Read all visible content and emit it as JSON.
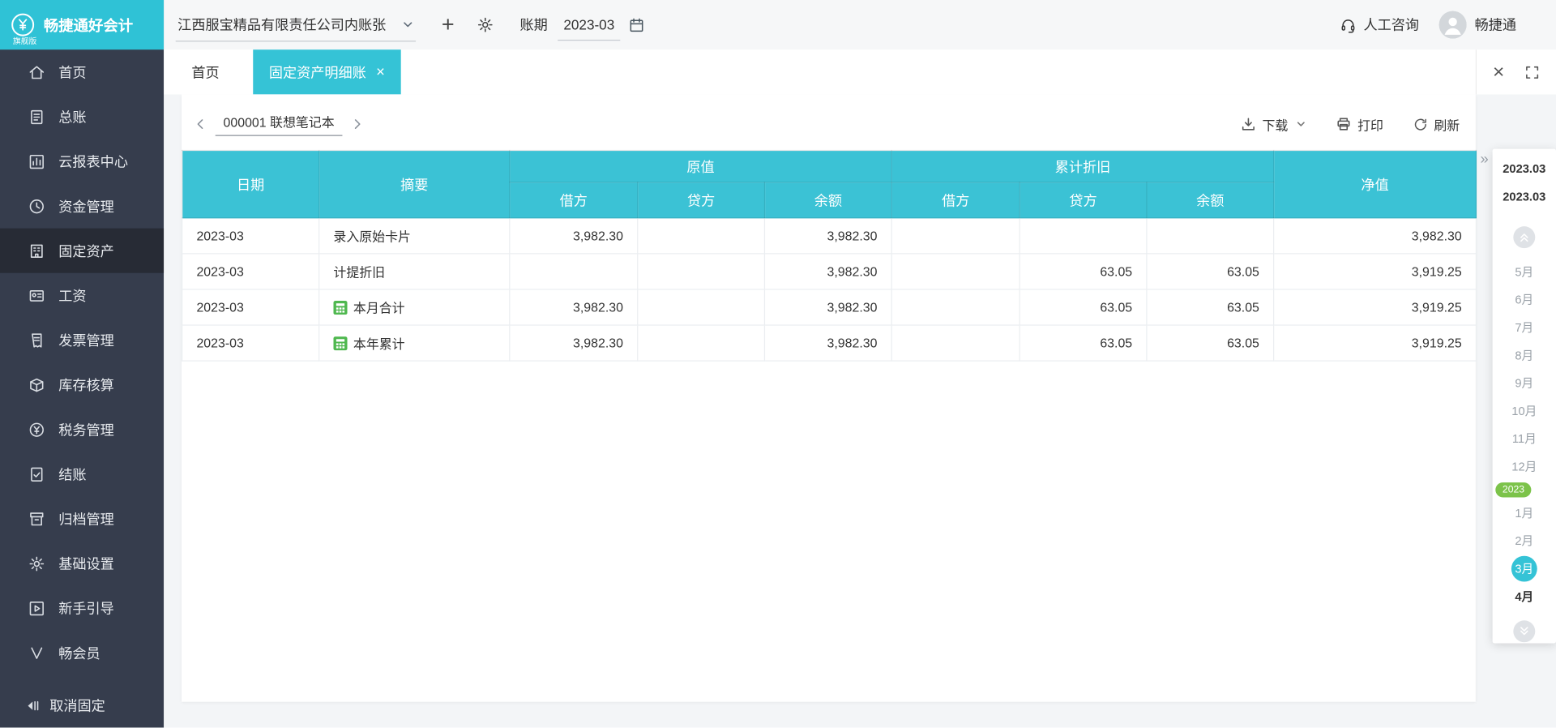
{
  "colors": {
    "accent": "#35c3d6",
    "sidebar_bg": "#363d4d",
    "sidebar_active_bg": "#272b35",
    "table_header_bg": "#3bc2d5",
    "year_badge_green": "#7cc34a",
    "subtotal_icon_green": "#4fb84f"
  },
  "app": {
    "logo_title": "畅捷通好会计",
    "logo_subtitle": "旗舰版"
  },
  "sidebar": {
    "items": [
      {
        "id": "home",
        "icon": "home-icon",
        "label": "首页",
        "active": false
      },
      {
        "id": "general-ledger",
        "icon": "ledger-icon",
        "label": "总账",
        "active": false
      },
      {
        "id": "cloud-reports",
        "icon": "report-icon",
        "label": "云报表中心",
        "active": false
      },
      {
        "id": "funds",
        "icon": "fund-icon",
        "label": "资金管理",
        "active": false
      },
      {
        "id": "fixed-assets",
        "icon": "asset-icon",
        "label": "固定资产",
        "active": true
      },
      {
        "id": "salary",
        "icon": "salary-icon",
        "label": "工资",
        "active": false
      },
      {
        "id": "invoices",
        "icon": "invoice-icon",
        "label": "发票管理",
        "active": false
      },
      {
        "id": "inventory",
        "icon": "inventory-icon",
        "label": "库存核算",
        "active": false
      },
      {
        "id": "tax",
        "icon": "tax-icon",
        "label": "税务管理",
        "active": false
      },
      {
        "id": "closing",
        "icon": "closing-icon",
        "label": "结账",
        "active": false
      },
      {
        "id": "archive",
        "icon": "archive-icon",
        "label": "归档管理",
        "active": false
      },
      {
        "id": "settings",
        "icon": "settings-icon",
        "label": "基础设置",
        "active": false
      },
      {
        "id": "guide",
        "icon": "guide-icon",
        "label": "新手引导",
        "active": false
      },
      {
        "id": "member",
        "icon": "member-icon",
        "label": "畅会员",
        "active": false
      }
    ],
    "unpin_label": "取消固定"
  },
  "topbar": {
    "company": "江西服宝精品有限责任公司内账张",
    "period_label": "账期",
    "period_value": "2023-03",
    "consult_label": "人工咨询",
    "username": "畅捷通"
  },
  "tabs": [
    {
      "label": "首页",
      "active": false
    },
    {
      "label": "固定资产明细账",
      "active": true
    }
  ],
  "toolbar": {
    "asset_nav": "000001 联想笔记本",
    "download_label": "下载",
    "print_label": "打印",
    "refresh_label": "刷新"
  },
  "table": {
    "header": {
      "date": "日期",
      "summary": "摘要",
      "original": "原值",
      "accumulated": "累计折旧",
      "net": "净值",
      "sub": [
        "借方",
        "贷方",
        "余额"
      ]
    },
    "rows": [
      {
        "date": "2023-03",
        "summary": "录入原始卡片",
        "total": false,
        "ov_debit": "3,982.30",
        "ov_credit": "",
        "ov_balance": "3,982.30",
        "ad_debit": "",
        "ad_credit": "",
        "ad_balance": "",
        "net": "3,982.30"
      },
      {
        "date": "2023-03",
        "summary": "计提折旧",
        "total": false,
        "ov_debit": "",
        "ov_credit": "",
        "ov_balance": "3,982.30",
        "ad_debit": "",
        "ad_credit": "63.05",
        "ad_balance": "63.05",
        "net": "3,919.25"
      },
      {
        "date": "2023-03",
        "summary": "本月合计",
        "total": true,
        "ov_debit": "3,982.30",
        "ov_credit": "",
        "ov_balance": "3,982.30",
        "ad_debit": "",
        "ad_credit": "63.05",
        "ad_balance": "63.05",
        "net": "3,919.25"
      },
      {
        "date": "2023-03",
        "summary": "本年累计",
        "total": true,
        "ov_debit": "3,982.30",
        "ov_credit": "",
        "ov_balance": "3,982.30",
        "ad_debit": "",
        "ad_credit": "63.05",
        "ad_balance": "63.05",
        "net": "3,919.25"
      }
    ]
  },
  "timeline": {
    "period_from": "2023.03",
    "period_to": "2023.03",
    "items": [
      {
        "label": "5月",
        "type": "month"
      },
      {
        "label": "6月",
        "type": "month"
      },
      {
        "label": "7月",
        "type": "month"
      },
      {
        "label": "8月",
        "type": "month"
      },
      {
        "label": "9月",
        "type": "month"
      },
      {
        "label": "10月",
        "type": "month"
      },
      {
        "label": "11月",
        "type": "month"
      },
      {
        "label": "12月",
        "type": "month"
      },
      {
        "label": "2023",
        "type": "year"
      },
      {
        "label": "1月",
        "type": "month"
      },
      {
        "label": "2月",
        "type": "month"
      },
      {
        "label": "3月",
        "type": "selected"
      },
      {
        "label": "4月",
        "type": "current"
      }
    ]
  }
}
